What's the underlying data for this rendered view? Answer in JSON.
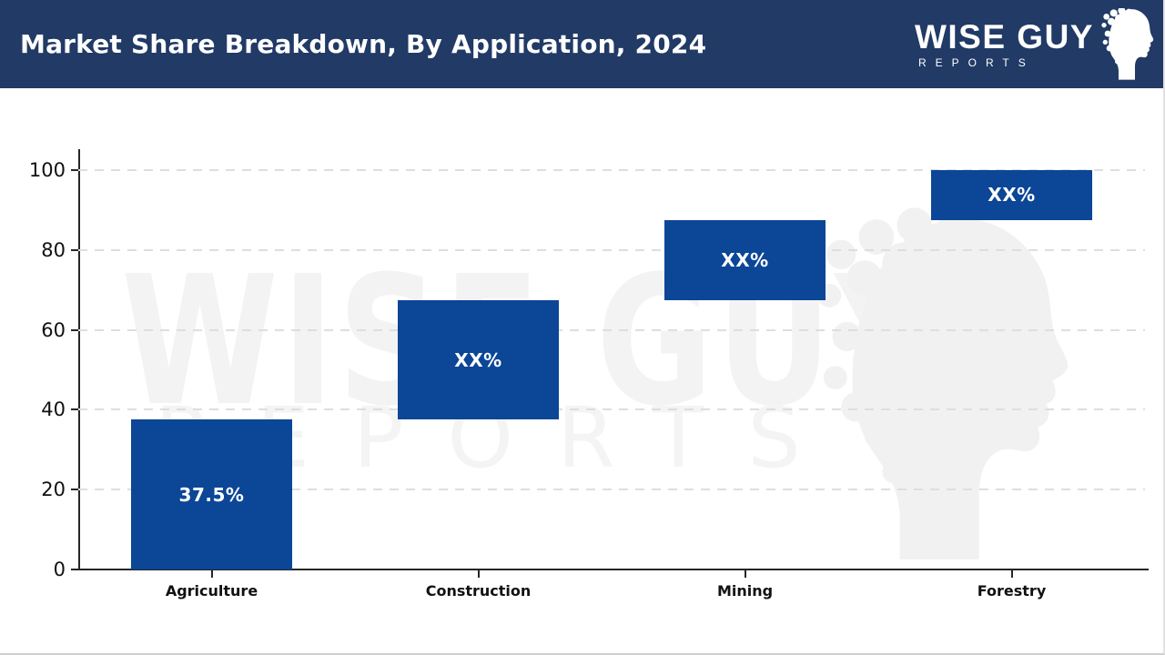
{
  "header": {
    "title": "Market Share Breakdown, By Application, 2024",
    "logo": {
      "line1": "WISE GUY",
      "line2": "REPORTS"
    }
  },
  "watermark": {
    "line1": "WISE GUY",
    "line2": "REPORTS"
  },
  "colors": {
    "header_bg": "#213a66",
    "bar": "#0b4697",
    "bar_label": "#ffffff",
    "grid": "#dedede",
    "axis": "#262626",
    "tick_label": "#111111",
    "watermark": "#f3f3f3"
  },
  "chart_data": {
    "type": "bar",
    "subtype": "floating-waterfall",
    "title": "Market Share Breakdown, By Application, 2024",
    "categories": [
      "Agriculture",
      "Construction",
      "Mining",
      "Forestry"
    ],
    "segments": [
      {
        "category": "Agriculture",
        "start": 0,
        "end": 37.5,
        "value": 37.5,
        "label": "37.5%"
      },
      {
        "category": "Construction",
        "start": 37.5,
        "end": 67.5,
        "value": 30,
        "label": "XX%"
      },
      {
        "category": "Mining",
        "start": 67.5,
        "end": 87.5,
        "value": 20,
        "label": "XX%"
      },
      {
        "category": "Forestry",
        "start": 87.5,
        "end": 100,
        "value": 12.5,
        "label": "XX%"
      }
    ],
    "xlabel": "",
    "ylabel": "",
    "yticks": [
      0,
      20,
      40,
      60,
      80,
      100
    ],
    "ylim": [
      0,
      105
    ],
    "grid": "horizontal-dashed",
    "legend": "none"
  }
}
